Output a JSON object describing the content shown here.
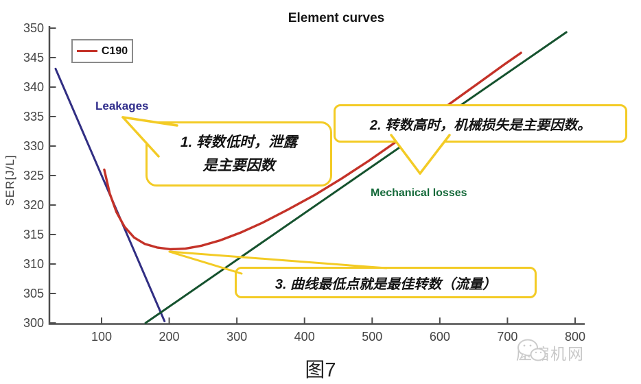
{
  "title": "Element curves",
  "caption": "图7",
  "watermark": {
    "text": "压缩机网"
  },
  "legend": {
    "label": "C190",
    "color": "#c43228"
  },
  "annotations": {
    "leakages": {
      "text": "Leakages",
      "color": "#312e8c"
    },
    "mechanical": {
      "text": "Mechanical losses",
      "color": "#156a3a"
    }
  },
  "callouts": {
    "c1": {
      "line1": "1. 转数低时，泄露",
      "line2": "是主要因数"
    },
    "c2": {
      "text": "2. 转数高时，机械损失是主要因数。"
    },
    "c3": {
      "text": "3. 曲线最低点就是最佳转数（流量）"
    }
  },
  "chart_data": {
    "type": "line",
    "title": "Element curves",
    "xlabel": "",
    "ylabel": "SER[J/L]",
    "xlim": [
      23,
      812
    ],
    "ylim": [
      300,
      350
    ],
    "grid": false,
    "legend_position": "top-left",
    "x_ticks": [
      100,
      200,
      300,
      400,
      500,
      600,
      700,
      800
    ],
    "y_ticks": [
      300,
      305,
      310,
      315,
      320,
      325,
      330,
      335,
      340,
      345,
      350
    ],
    "series": [
      {
        "name": "Leakages",
        "color": "#312e83",
        "width": 3,
        "points": [
          [
            32,
            343.1
          ],
          [
            193,
            300.3
          ]
        ]
      },
      {
        "name": "Mechanical losses",
        "color": "#15522e",
        "width": 3,
        "points": [
          [
            165,
            300
          ],
          [
            787,
            349.3
          ]
        ]
      },
      {
        "name": "C190",
        "color": "#c43228",
        "width": 3.4,
        "points": [
          [
            104,
            326.0
          ],
          [
            112,
            322.0
          ],
          [
            122,
            318.8
          ],
          [
            134,
            316.3
          ],
          [
            148,
            314.5
          ],
          [
            164,
            313.4
          ],
          [
            182,
            312.8
          ],
          [
            202,
            312.5
          ],
          [
            224,
            312.6
          ],
          [
            248,
            313.1
          ],
          [
            275,
            314.0
          ],
          [
            305,
            315.3
          ],
          [
            338,
            317.0
          ],
          [
            375,
            319.2
          ],
          [
            415,
            321.7
          ],
          [
            455,
            324.5
          ],
          [
            495,
            327.5
          ],
          [
            535,
            330.7
          ],
          [
            575,
            333.9
          ],
          [
            615,
            337.2
          ],
          [
            655,
            340.5
          ],
          [
            695,
            343.8
          ],
          [
            720,
            345.8
          ]
        ]
      }
    ]
  }
}
